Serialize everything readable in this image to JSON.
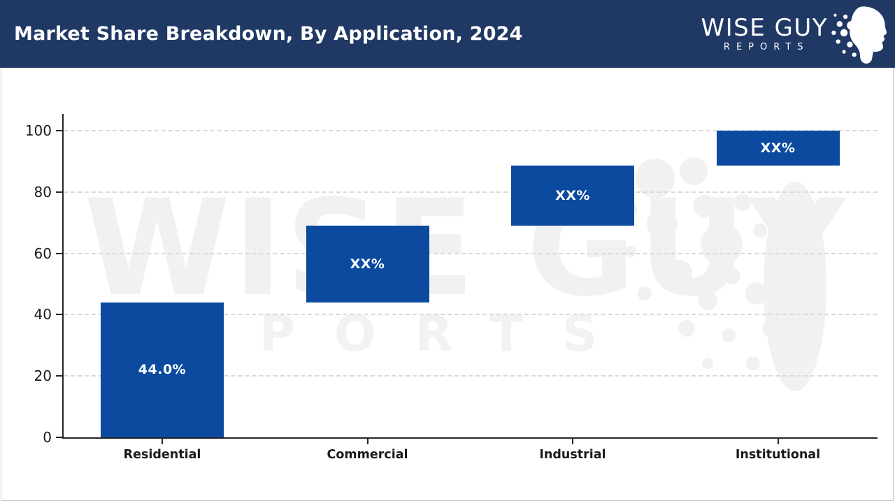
{
  "header": {
    "title": "Market Share Breakdown, By Application, 2024",
    "bg_color": "#203864",
    "logo": {
      "line1": "WISE GUY",
      "line2": "REPORTS",
      "icon": "face-profile-dots-icon"
    }
  },
  "watermark": {
    "line1": "WISE GUY",
    "line2": "REPORTS",
    "icon": "face-profile-dots-icon"
  },
  "chart_data": {
    "type": "bar",
    "subtype": "waterfall",
    "title": "Market Share Breakdown, By Application, 2024",
    "categories": [
      "Residential",
      "Commercial",
      "Industrial",
      "Institutional"
    ],
    "segments": [
      {
        "category": "Residential",
        "start": 0,
        "end": 44,
        "label": "44.0%"
      },
      {
        "category": "Commercial",
        "start": 44,
        "end": 69,
        "label": "XX%"
      },
      {
        "category": "Industrial",
        "start": 69,
        "end": 88.7,
        "label": "XX%"
      },
      {
        "category": "Institutional",
        "start": 88.7,
        "end": 100,
        "label": "XX%"
      }
    ],
    "values_pct": [
      44,
      25,
      19.7,
      11.3
    ],
    "yticks": [
      0,
      20,
      40,
      60,
      80,
      100
    ],
    "ylim": [
      0,
      105
    ],
    "xlabel": "",
    "ylabel": "",
    "grid": "horizontal-dashed",
    "legend": "none",
    "bar_color": "#0b4a9f",
    "bar_label_color": "#ffffff",
    "axis_color": "#262626",
    "gridline_color": "#d9d9d9"
  }
}
